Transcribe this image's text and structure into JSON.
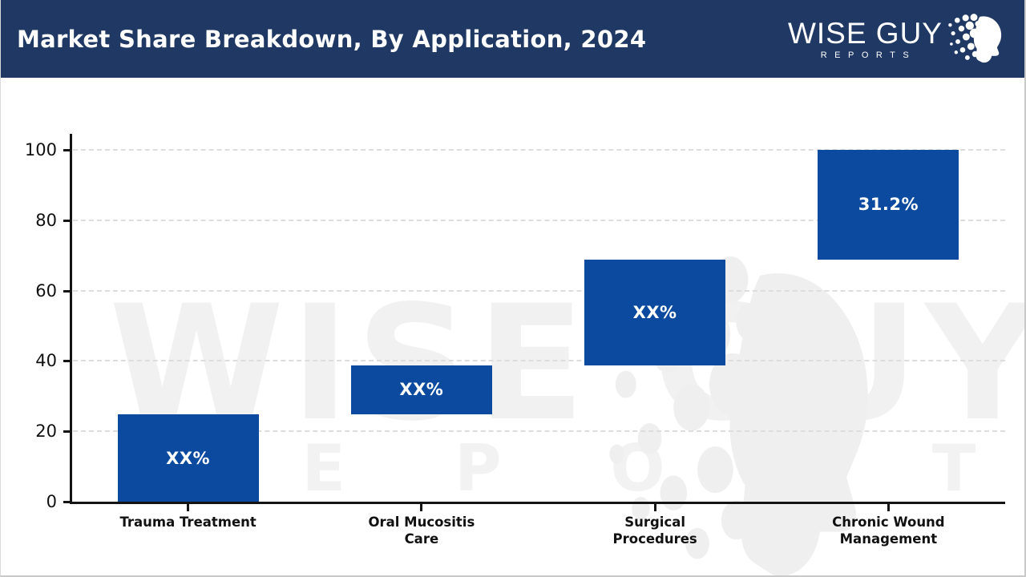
{
  "header": {
    "title": "Market Share Breakdown, By Application, 2024",
    "bg_color": "#1f3864",
    "logo": {
      "line1": "WISE GUY",
      "line2": "REPORTS"
    }
  },
  "watermark": {
    "line1": "WISE GUY",
    "line2": "R E P O R T S"
  },
  "chart_data": {
    "type": "bar",
    "subtype": "waterfall",
    "title": "Market Share Breakdown, By Application, 2024",
    "categories": [
      "Trauma Treatment",
      "Oral Mucositis Care",
      "Surgical Procedures",
      "Chronic Wound Management"
    ],
    "category_lines": [
      [
        "Trauma Treatment"
      ],
      [
        "Oral Mucositis",
        "Care"
      ],
      [
        "Surgical",
        "Procedures"
      ],
      [
        "Chronic Wound",
        "Management"
      ]
    ],
    "bars": [
      {
        "category": "Trauma Treatment",
        "start": 0,
        "end": 24.8,
        "value_label": "XX%"
      },
      {
        "category": "Oral Mucositis Care",
        "start": 24.8,
        "end": 38.8,
        "value_label": "XX%"
      },
      {
        "category": "Surgical Procedures",
        "start": 38.8,
        "end": 68.8,
        "value_label": "XX%"
      },
      {
        "category": "Chronic Wound Management",
        "start": 68.8,
        "end": 100,
        "value_label": "31.2%"
      }
    ],
    "yticks": [
      0,
      20,
      40,
      60,
      80,
      100
    ],
    "ylim": [
      0,
      100
    ],
    "xlabel": "",
    "ylabel": "",
    "bar_color": "#0b4a9e",
    "grid": "horizontal-dashed",
    "legend": "none"
  }
}
